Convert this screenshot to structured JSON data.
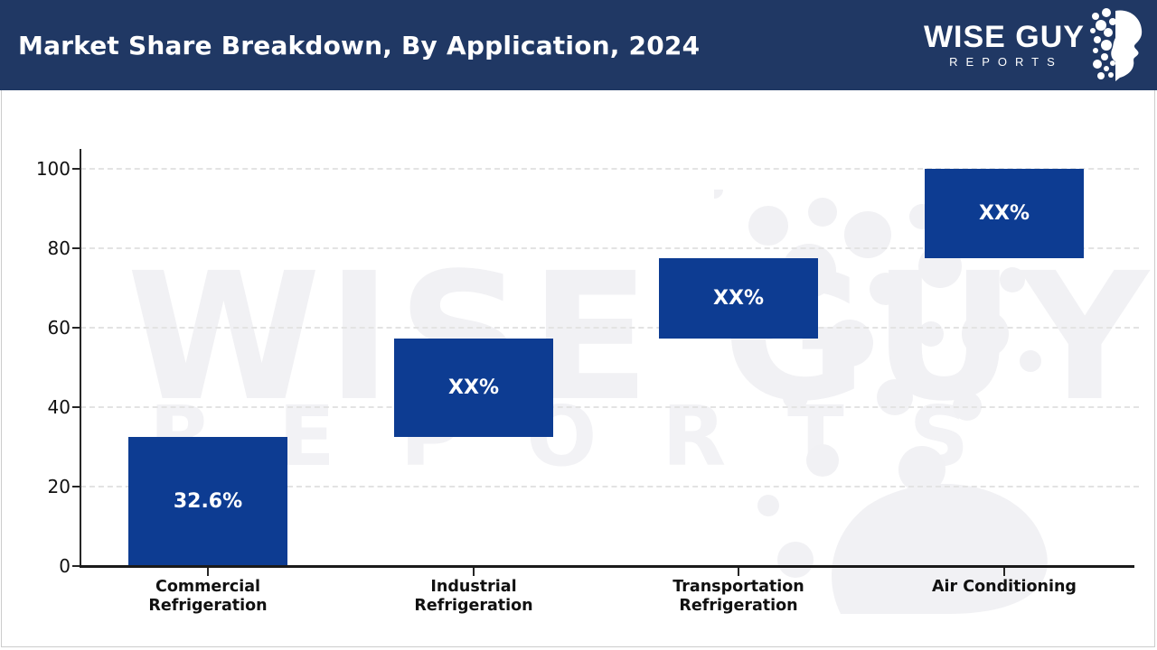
{
  "header": {
    "title": "Market Share Breakdown, By Application, 2024",
    "bg_color": "#203864",
    "logo": {
      "line1": "WISE GUY",
      "line2": "REPORTS"
    }
  },
  "watermark": {
    "line1": "WISE GUY",
    "line2": "REPORTS"
  },
  "chart_data": {
    "type": "bar",
    "subtype": "waterfall-floating-bars",
    "title": "Market Share Breakdown, By Application, 2024",
    "categories": [
      "Commercial Refrigeration",
      "Industrial Refrigeration",
      "Transportation Refrigeration",
      "Air Conditioning"
    ],
    "segments": [
      {
        "category": "Commercial Refrigeration",
        "start": 0,
        "end": 32.6,
        "label": "32.6%"
      },
      {
        "category": "Industrial Refrigeration",
        "start": 32.6,
        "end": 57.2,
        "label": "XX%"
      },
      {
        "category": "Transportation Refrigeration",
        "start": 57.2,
        "end": 77.5,
        "label": "XX%"
      },
      {
        "category": "Air Conditioning",
        "start": 77.5,
        "end": 100,
        "label": "XX%"
      }
    ],
    "xlabel": "",
    "ylabel": "",
    "ylim": [
      0,
      100
    ],
    "yticks": [
      0,
      20,
      40,
      60,
      80,
      100
    ],
    "grid": "horizontal-dashed",
    "legend": "none",
    "bar_color": "#0d3c92",
    "bar_label_color": "#ffffff",
    "axis_color": "#1a1a1a",
    "gridline_color": "#e3e3e3"
  }
}
